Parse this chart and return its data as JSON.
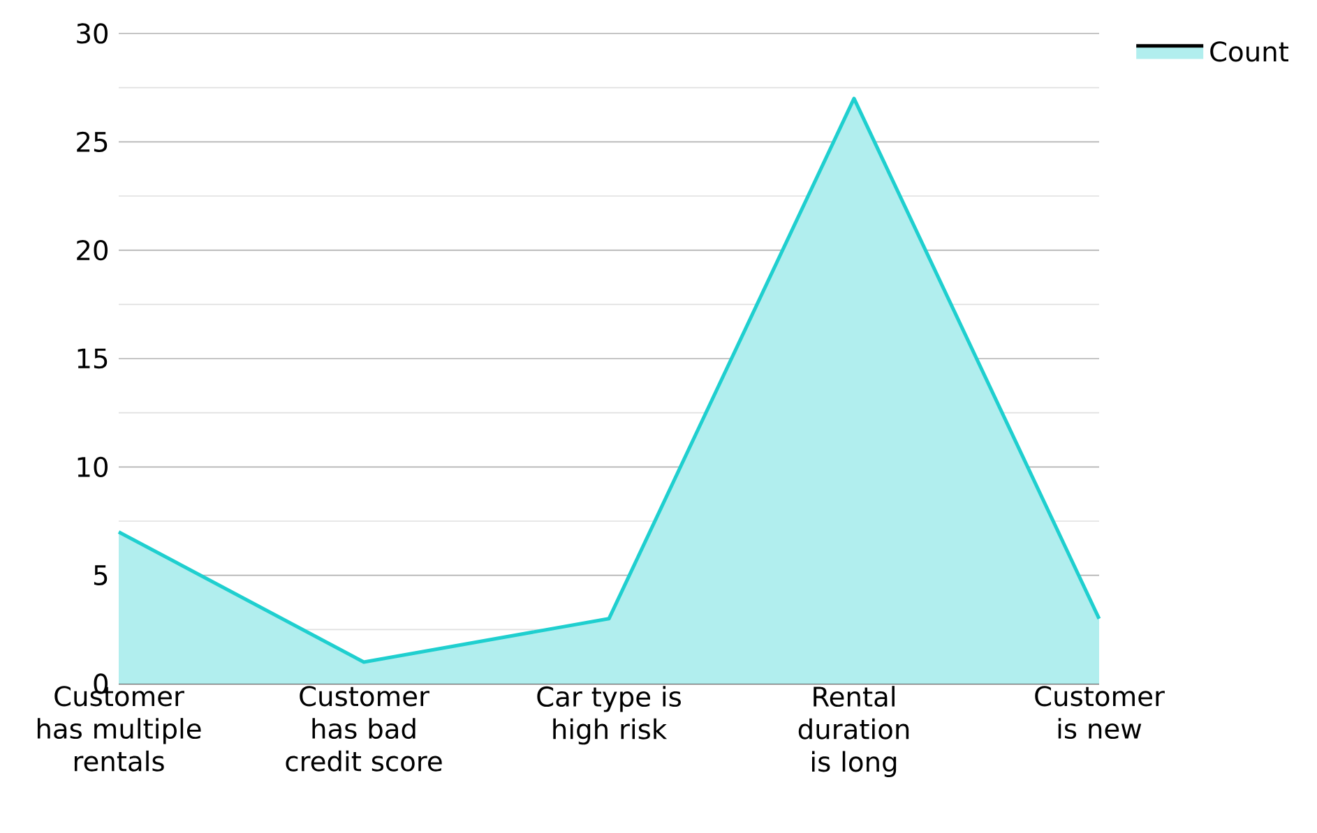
{
  "chart_data": {
    "type": "area",
    "categories": [
      "Customer has multiple rentals",
      "Customer has bad credit score",
      "Car type is high risk",
      "Rental duration is long",
      "Customer is new"
    ],
    "series": [
      {
        "name": "Count",
        "color": "#1fcfcf",
        "values": [
          7,
          1,
          3,
          27,
          3
        ]
      }
    ],
    "ylim": [
      0,
      30
    ],
    "yticks": [
      0,
      5,
      10,
      15,
      20,
      25,
      30
    ],
    "grid": "y",
    "legend": "top right"
  }
}
